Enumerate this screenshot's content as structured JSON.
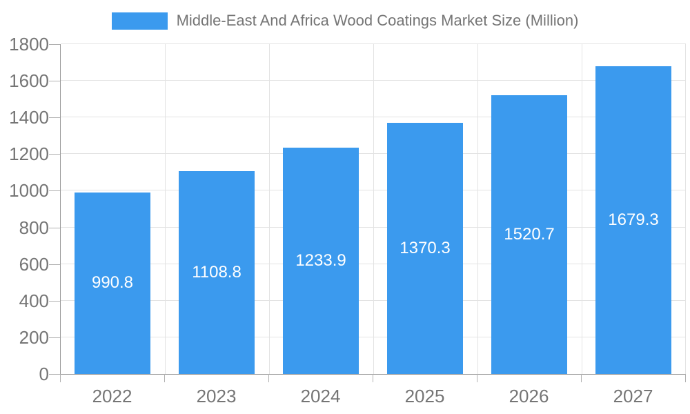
{
  "legend": {
    "label": "Middle-East And Africa Wood Coatings Market Size (Million)",
    "swatch_color": "#3b9aee"
  },
  "chart_data": {
    "type": "bar",
    "title": "Middle-East And Africa Wood Coatings Market Size (Million)",
    "categories": [
      "2022",
      "2023",
      "2024",
      "2025",
      "2026",
      "2027"
    ],
    "values": [
      990.8,
      1108.8,
      1233.9,
      1370.3,
      1520.7,
      1679.3
    ],
    "value_labels": [
      "990.8",
      "1108.8",
      "1233.9",
      "1370.3",
      "1520.7",
      "1679.3"
    ],
    "xlabel": "",
    "ylabel": "",
    "ylim": [
      0,
      1800
    ],
    "yticks": [
      "0",
      "200",
      "400",
      "600",
      "800",
      "1000",
      "1200",
      "1400",
      "1600",
      "1800"
    ],
    "grid": true,
    "legend_position": "top",
    "bar_color": "#3b9aee",
    "value_label_color": "#ffffff"
  },
  "colors": {
    "background": "#ffffff",
    "accent": "#3b9aee",
    "grid": "#e3e3e3",
    "axis": "#999999",
    "tick": "#b0b0b0",
    "text": "#757575"
  }
}
